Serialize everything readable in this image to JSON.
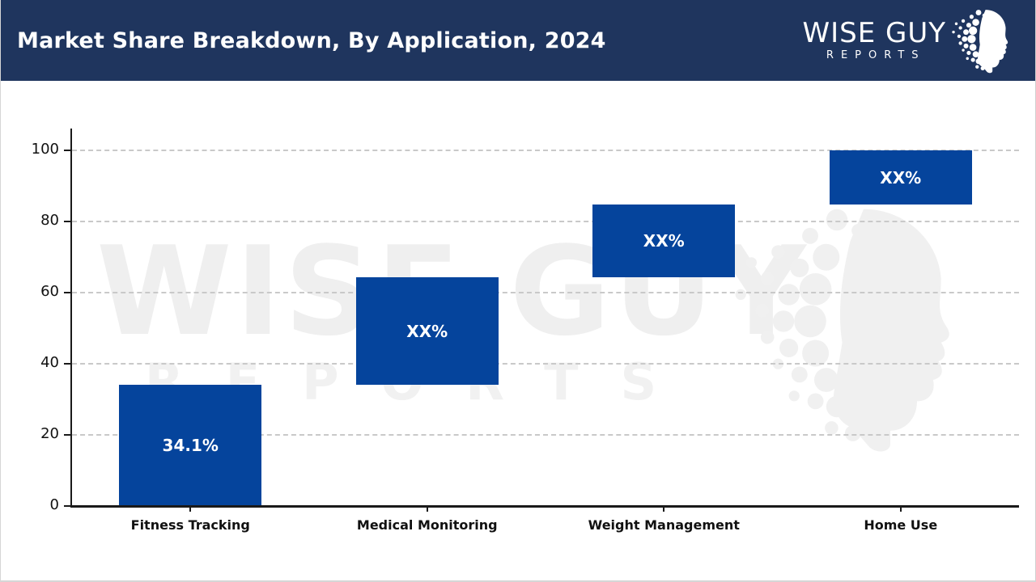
{
  "header": {
    "title": "Market Share Breakdown, By Application, 2024",
    "logo_line1": "WISE GUY",
    "logo_line2": "REPORTS"
  },
  "watermark": {
    "line1": "WISE GUY",
    "line2": "REPORTS"
  },
  "colors": {
    "header_bg": "#1f355e",
    "bar": "#05449c",
    "bar_label": "#ffffff",
    "grid": "#c9c9c9",
    "axis": "#1a1a1a"
  },
  "chart_data": {
    "type": "bar",
    "variant": "waterfall-floating-bars",
    "title": "Market Share Breakdown, By Application, 2024",
    "categories": [
      "Fitness Tracking",
      "Medical Monitoring",
      "Weight Management",
      "Home Use"
    ],
    "segments": [
      {
        "category": "Fitness Tracking",
        "start": 0,
        "end": 34.1,
        "label": "34.1%"
      },
      {
        "category": "Medical Monitoring",
        "start": 34.1,
        "end": 64.3,
        "label": "XX%"
      },
      {
        "category": "Weight Management",
        "start": 64.3,
        "end": 84.8,
        "label": "XX%"
      },
      {
        "category": "Home Use",
        "start": 84.8,
        "end": 100,
        "label": "XX%"
      }
    ],
    "ylabel": "",
    "xlabel": "",
    "yticks": [
      0,
      20,
      40,
      60,
      80,
      100
    ],
    "ylim": [
      0,
      106
    ],
    "grid": "horizontal-dashed",
    "legend": "none",
    "bar_color": "#05449c"
  }
}
